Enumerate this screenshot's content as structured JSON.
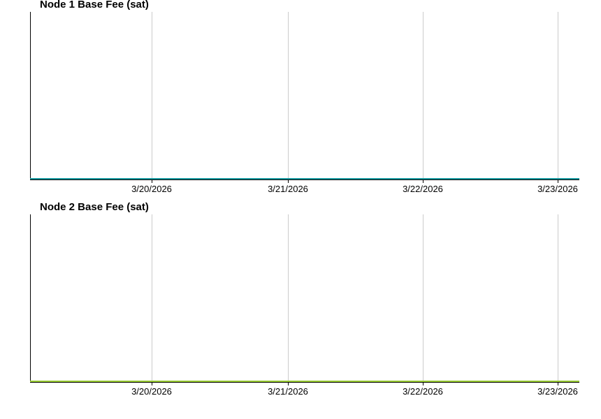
{
  "charts": [
    {
      "title": "Node 1 Base Fee (sat)",
      "line_color": "#1a9aa0",
      "x_labels": [
        "3/20/2026",
        "3/21/2026",
        "3/22/2026",
        "3/23/2026"
      ]
    },
    {
      "title": "Node 2 Base Fee (sat)",
      "line_color": "#9acd32",
      "x_labels": [
        "3/20/2026",
        "3/21/2026",
        "3/22/2026",
        "3/23/2026"
      ]
    }
  ],
  "colors": {
    "axis": "#000000",
    "gridline": "#cbcbcb",
    "background": "#ffffff",
    "node1_line": "#1a9aa0",
    "node2_line": "#9acd32"
  },
  "chart_data": [
    {
      "type": "line",
      "title": "Node 1 Base Fee (sat)",
      "x": [
        "3/20/2026",
        "3/21/2026",
        "3/22/2026",
        "3/23/2026"
      ],
      "series": [
        {
          "name": "Node 1 Base Fee (sat)",
          "values": [
            0,
            0,
            0,
            0
          ]
        }
      ],
      "xlabel": "",
      "ylabel": "",
      "ylim": [
        0,
        null
      ],
      "grid": "vertical-only",
      "legend_position": "none",
      "line_color": "#1a9aa0",
      "notes": "Flat line at 0 along the bottom axis; no y-axis tick labels shown; x range extends slightly beyond labeled dates on both sides."
    },
    {
      "type": "line",
      "title": "Node 2 Base Fee (sat)",
      "x": [
        "3/20/2026",
        "3/21/2026",
        "3/22/2026",
        "3/23/2026"
      ],
      "series": [
        {
          "name": "Node 2 Base Fee (sat)",
          "values": [
            0,
            0,
            0,
            0
          ]
        }
      ],
      "xlabel": "",
      "ylabel": "",
      "ylim": [
        0,
        null
      ],
      "grid": "vertical-only",
      "legend_position": "none",
      "line_color": "#9acd32",
      "notes": "Flat line at 0 along the bottom axis; no y-axis tick labels shown; x range extends slightly beyond labeled dates on both sides."
    }
  ]
}
